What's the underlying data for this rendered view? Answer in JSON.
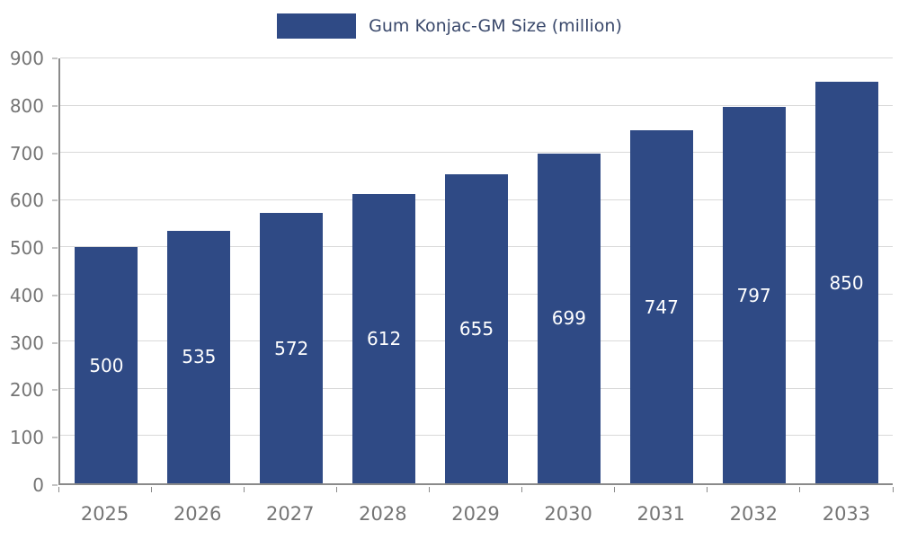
{
  "legend": {
    "label": "Gum Konjac-GM Size (million)"
  },
  "colors": {
    "bar": "#2f4a85",
    "grid": "#d9d9d9",
    "axis": "#8a8a8a",
    "tick_text": "#757575",
    "legend_text": "#39486b",
    "bar_label": "#ffffff"
  },
  "chart_data": {
    "type": "bar",
    "categories": [
      "2025",
      "2026",
      "2027",
      "2028",
      "2029",
      "2030",
      "2031",
      "2032",
      "2033"
    ],
    "values": [
      500,
      535,
      572,
      612,
      655,
      699,
      747,
      797,
      850
    ],
    "title": "",
    "xlabel": "",
    "ylabel": "",
    "legend": [
      "Gum Konjac-GM Size (million)"
    ],
    "legend_position": "top",
    "ylim": [
      0,
      900
    ],
    "ytick_step": 100,
    "grid": true,
    "bar_labels_inside": true
  }
}
